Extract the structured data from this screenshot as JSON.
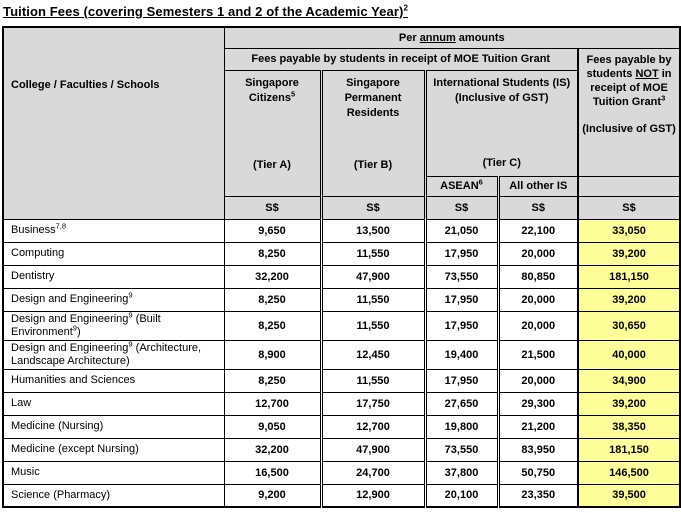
{
  "colors": {
    "header_gray": "#D9D9D9",
    "highlight_yellow": "#FFFF99",
    "border": "#000000"
  },
  "title": {
    "text": "Tuition Fees (covering Semesters 1 and 2 of the Academic Year)",
    "sup": "2"
  },
  "header": {
    "college": "College / Faculties / Schools",
    "per_annum": {
      "pre": "Per ",
      "underlined": "annum",
      "post": " amounts"
    },
    "grant_group": "Fees payable by students in receipt of MOE Tuition Grant",
    "non_grant": {
      "pre": "Fees payable by students ",
      "not_word": "NOT",
      "post": " in receipt of MOE Tuition Grant",
      "sup": "3",
      "line2": "(Inclusive of GST)"
    },
    "citizens": {
      "text": "Singapore Citizens",
      "sup": "5",
      "tier": "(Tier A)"
    },
    "permanent_residents": {
      "text": "Singapore Permanent Residents",
      "tier": "(Tier B)"
    },
    "international": {
      "line1": "International Students (IS)",
      "line2": "(Inclusive of GST)",
      "tier": "(Tier C)"
    },
    "asean": {
      "text": "ASEAN",
      "sup": "6"
    },
    "all_other": "All other IS",
    "currency": "S$"
  },
  "rows": [
    {
      "name": [
        {
          "t": "Business"
        },
        {
          "s": "7,8"
        }
      ],
      "values": [
        "9,650",
        "13,500",
        "21,050",
        "22,100"
      ],
      "non_grant": "33,050"
    },
    {
      "name": [
        {
          "t": "Computing"
        }
      ],
      "values": [
        "8,250",
        "11,550",
        "17,950",
        "20,000"
      ],
      "non_grant": "39,200"
    },
    {
      "name": [
        {
          "t": "Dentistry"
        }
      ],
      "values": [
        "32,200",
        "47,900",
        "73,550",
        "80,850"
      ],
      "non_grant": "181,150"
    },
    {
      "name": [
        {
          "t": "Design and Engineering"
        },
        {
          "s": "9"
        }
      ],
      "values": [
        "8,250",
        "11,550",
        "17,950",
        "20,000"
      ],
      "non_grant": "39,200"
    },
    {
      "name": [
        {
          "t": "Design and Engineering"
        },
        {
          "s": "9"
        },
        {
          "t": " (Built Environment"
        },
        {
          "s": "9"
        },
        {
          "t": ")"
        }
      ],
      "values": [
        "8,250",
        "11,550",
        "17,950",
        "20,000"
      ],
      "non_grant": "30,650"
    },
    {
      "name": [
        {
          "t": "Design and Engineering"
        },
        {
          "s": "9"
        },
        {
          "t": " (Architecture, Landscape Architecture)"
        }
      ],
      "values": [
        "8,900",
        "12,450",
        "19,400",
        "21,500"
      ],
      "non_grant": "40,000"
    },
    {
      "name": [
        {
          "t": "Humanities and Sciences"
        }
      ],
      "values": [
        "8,250",
        "11,550",
        "17,950",
        "20,000"
      ],
      "non_grant": "34,900"
    },
    {
      "name": [
        {
          "t": "Law"
        }
      ],
      "values": [
        "12,700",
        "17,750",
        "27,650",
        "29,300"
      ],
      "non_grant": "39,200"
    },
    {
      "name": [
        {
          "t": "Medicine (Nursing)"
        }
      ],
      "values": [
        "9,050",
        "12,700",
        "19,800",
        "21,200"
      ],
      "non_grant": "38,350"
    },
    {
      "name": [
        {
          "t": "Medicine (except Nursing)"
        }
      ],
      "values": [
        "32,200",
        "47,900",
        "73,550",
        "83,950"
      ],
      "non_grant": "181,150"
    },
    {
      "name": [
        {
          "t": "Music"
        }
      ],
      "values": [
        "16,500",
        "24,700",
        "37,800",
        "50,750"
      ],
      "non_grant": "146,500"
    },
    {
      "name": [
        {
          "t": "Science (Pharmacy)"
        }
      ],
      "values": [
        "9,200",
        "12,900",
        "20,100",
        "23,350"
      ],
      "non_grant": "39,500"
    }
  ]
}
